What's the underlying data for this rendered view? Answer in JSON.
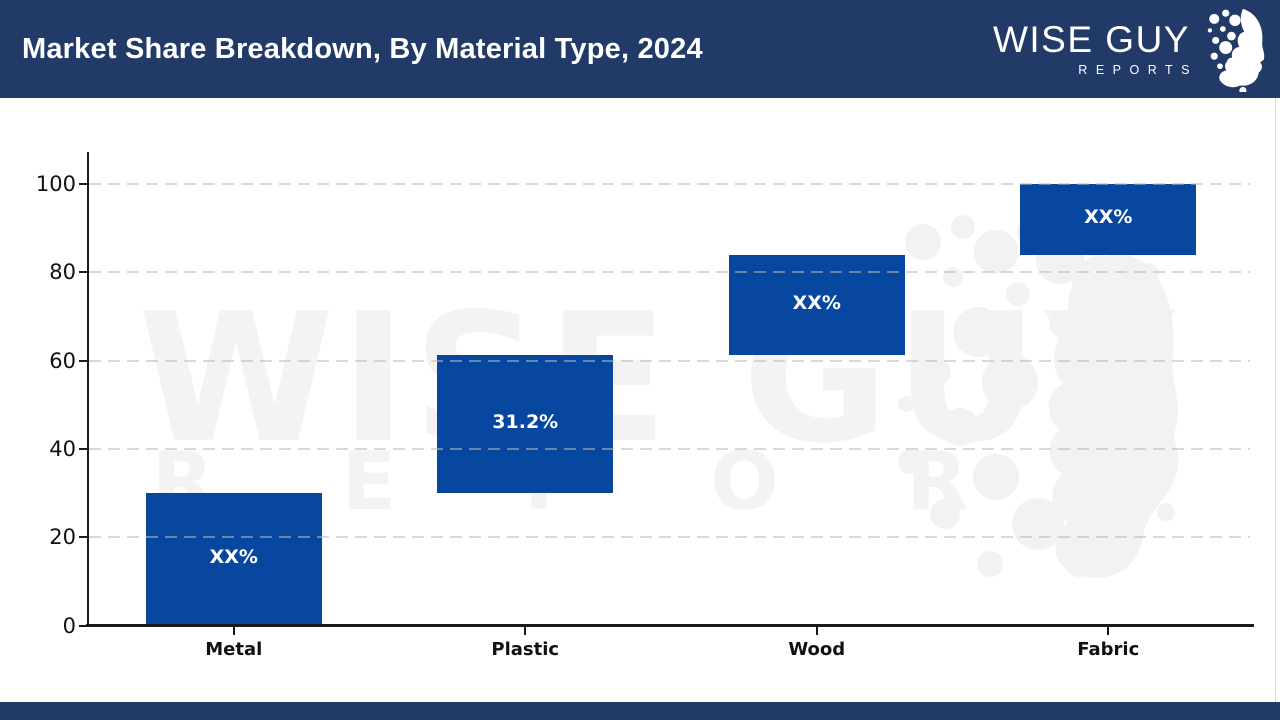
{
  "header": {
    "title": "Market Share Breakdown, By Material Type, 2024",
    "bg_color": "#223A67",
    "logo": {
      "line1": "WISE GUY",
      "line2": "REPORTS",
      "icon": "wiseguy-head-icon"
    }
  },
  "watermark": {
    "line1": "WISE GUY",
    "line2": "R E P O R T S",
    "icon": "wiseguy-head-dots-icon"
  },
  "footer": {
    "bg_color": "#223A67"
  },
  "chart_data": {
    "type": "bar",
    "subtype": "floating-segment waterfall of market share",
    "title": "Market Share Breakdown, By Material Type, 2024",
    "categories": [
      "Metal",
      "Plastic",
      "Wood",
      "Fabric"
    ],
    "bars": [
      {
        "category": "Metal",
        "label": "XX%",
        "start": 0,
        "end": 30
      },
      {
        "category": "Plastic",
        "label": "31.2%",
        "start": 30,
        "end": 61.2
      },
      {
        "category": "Wood",
        "label": "XX%",
        "start": 61.2,
        "end": 84
      },
      {
        "category": "Fabric",
        "label": "XX%",
        "start": 84,
        "end": 100
      }
    ],
    "bar_color": "#0847A0",
    "label_color": "#FFFFFF",
    "ylim": [
      0,
      100
    ],
    "yticks": [
      0,
      20,
      40,
      60,
      80,
      100
    ],
    "xlabel": "",
    "ylabel": "",
    "grid": "horizontal dashed",
    "legend": "none"
  }
}
